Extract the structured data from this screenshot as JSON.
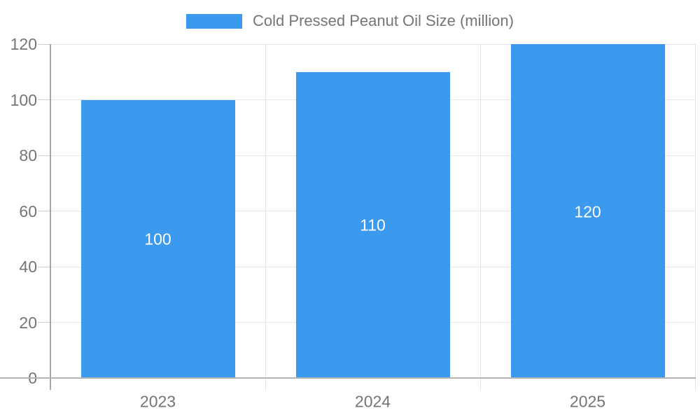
{
  "legend": {
    "label": "Cold Pressed Peanut Oil Size (million)"
  },
  "chart_data": {
    "type": "bar",
    "title": "Cold Pressed Peanut Oil Size (million)",
    "categories": [
      "2023",
      "2024",
      "2025"
    ],
    "values": [
      100,
      110,
      120
    ],
    "value_labels": [
      "100",
      "110",
      "120"
    ],
    "xlabel": "",
    "ylabel": "",
    "ylim": [
      0,
      120
    ],
    "yticks": [
      0,
      20,
      40,
      60,
      80,
      100,
      120
    ],
    "grid": true,
    "legend_position": "top-center",
    "colors": {
      "bar": "#3B99EE",
      "gridline": "#E6E6E6",
      "separator": "#E6E6E6",
      "tick": "#CFCFCF",
      "y_axis_line": "#A6A6A6",
      "x_axis_line": "#B3B3B3",
      "axis_text": "#757575",
      "value_text": "#FFFFFF",
      "background": "#FFFFFF"
    }
  }
}
